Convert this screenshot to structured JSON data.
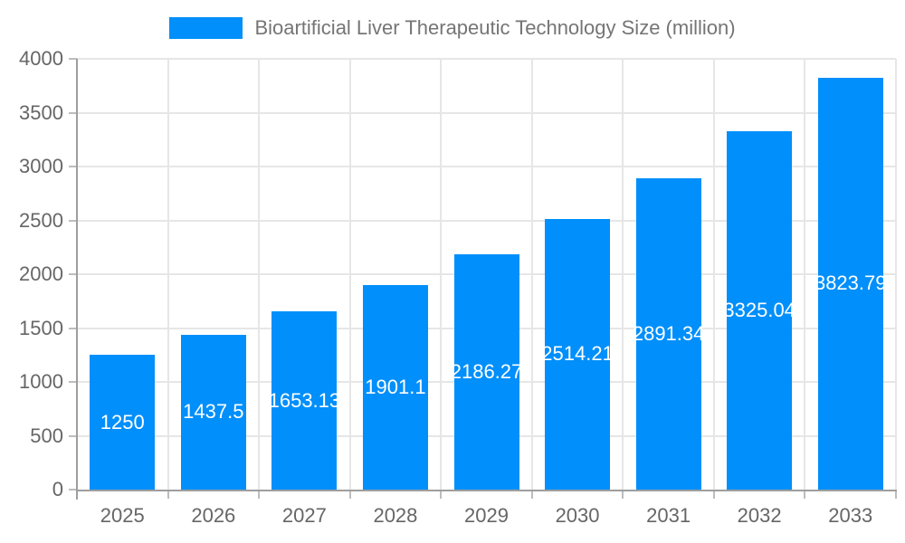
{
  "legend": {
    "label": "Bioartificial Liver Therapeutic Technology Size (million)"
  },
  "chart_data": {
    "type": "bar",
    "title": "Bioartificial Liver Therapeutic Technology Size (million)",
    "categories": [
      "2025",
      "2026",
      "2027",
      "2028",
      "2029",
      "2030",
      "2031",
      "2032",
      "2033"
    ],
    "values": [
      1250,
      1437.5,
      1653.13,
      1901.1,
      2186.27,
      2514.21,
      2891.34,
      3325.04,
      3823.79
    ],
    "value_labels": [
      "1250",
      "1437.5",
      "1653.13",
      "1901.1",
      "2186.27",
      "2514.21",
      "2891.34",
      "3325.04",
      "3823.79"
    ],
    "xlabel": "",
    "ylabel": "",
    "ylim": [
      0,
      4000
    ],
    "yticks": [
      0,
      500,
      1000,
      1500,
      2000,
      2500,
      3000,
      3500,
      4000
    ],
    "grid": true,
    "legend_position": "top-center",
    "bar_color": "#008FFB",
    "value_label_color": "#ffffff"
  },
  "colors": {
    "bar": "#008FFB",
    "grid_line": "#e6e6e6",
    "axis_line": "#9e9e9e",
    "tick_mark": "#bdbdbd",
    "tick_text": "#666666",
    "title_text": "#757575",
    "background": "#ffffff"
  }
}
